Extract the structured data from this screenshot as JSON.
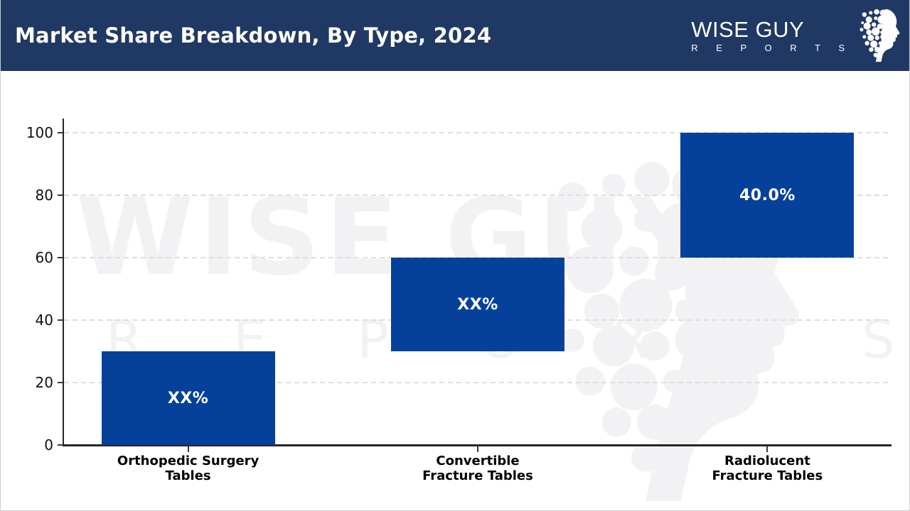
{
  "header": {
    "title": "Market Share Breakdown, By Type, 2024",
    "logo": {
      "name": "WISE GUY",
      "subtitle": "R E P O R T S"
    }
  },
  "watermark": {
    "line1": "WISE GUY",
    "line2": "R E P O R T S"
  },
  "chart_data": {
    "type": "bar",
    "subtype": "floating-segment-bars",
    "title": "Market Share Breakdown, By Type, 2024",
    "categories": [
      [
        "Orthopedic Surgery",
        "Tables"
      ],
      [
        "Convertible",
        "Fracture Tables"
      ],
      [
        "Radiolucent",
        "Fracture Tables"
      ]
    ],
    "bars": [
      {
        "category": "Orthopedic Surgery Tables",
        "start": 0,
        "end": 30,
        "label": "XX%"
      },
      {
        "category": "Convertible Fracture Tables",
        "start": 30,
        "end": 60,
        "label": "XX%"
      },
      {
        "category": "Radiolucent Fracture Tables",
        "start": 60,
        "end": 100,
        "label": "40.0%"
      }
    ],
    "ylim": [
      0,
      100
    ],
    "yticks": [
      0,
      20,
      40,
      60,
      80,
      100
    ],
    "grid": "dashed-horizontal",
    "legend": "none"
  },
  "colors": {
    "header_bg": "#203864",
    "bar": "#05419B",
    "bar_label": "#FFFFFF",
    "watermark": "#F2F2F4",
    "gridline": "#DEDEDE",
    "axis": "#262626",
    "tick_text": "#111111"
  }
}
